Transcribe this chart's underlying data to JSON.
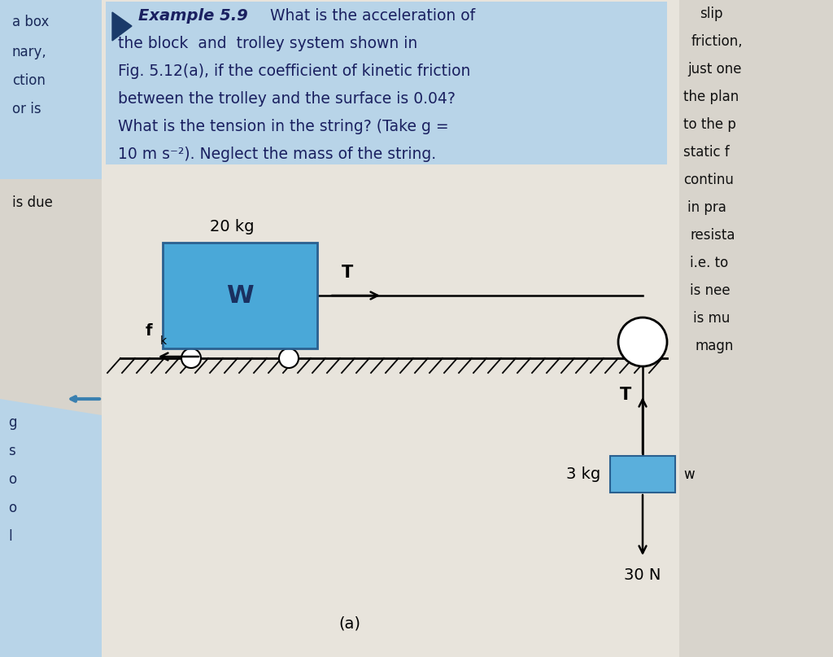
{
  "bg_main": "#d8e8f0",
  "bg_page": "#d8d4cc",
  "page_white": "#e8e4dc",
  "header_bg": "#b8d4e8",
  "left_col_bg": "#b8d4e8",
  "bottom_col_bg": "#b8d4e8",
  "trolley_color": "#4aa8d8",
  "trolley_border": "#2a6090",
  "small_block_color": "#5aafdc",
  "small_block_border": "#2a6090",
  "arrow_color": "#111111",
  "text_color_header": "#1a2a5a",
  "text_color_dark": "#111111",
  "label_20kg": "20 kg",
  "label_3kg": "3 kg",
  "label_W_big": "W",
  "label_W_small": "w",
  "label_T_horiz": "T",
  "label_T_vert": "T",
  "label_fk_main": "f",
  "label_fk_sub": "k",
  "label_30N": "30 N",
  "label_a": "(a)",
  "header_line1": "Example 5.9  What is the acceleration of",
  "header_line2": "the block and trolley system shown in",
  "header_line3": "Fig. 5.12(a), if the coefficient of kinetic friction",
  "header_line4": "between the trolley and the surface is 0.04?",
  "header_line5": "What is the tension in the string? (Take g =",
  "header_line6": "10 m s⁻²). Neglect the mass of the string.",
  "left_col_text": [
    "a box",
    "nary,",
    "ction",
    "or is",
    "",
    "is due"
  ],
  "right_col_text": [
    "slip",
    "friction,",
    "just one",
    "the plan",
    "to the p",
    "static f",
    "continu",
    "in pra",
    "resista",
    "i.e. to",
    "is nee",
    "is mu",
    "magn"
  ],
  "bottom_left_text": [
    "g",
    "s",
    "o",
    "o",
    "l"
  ]
}
